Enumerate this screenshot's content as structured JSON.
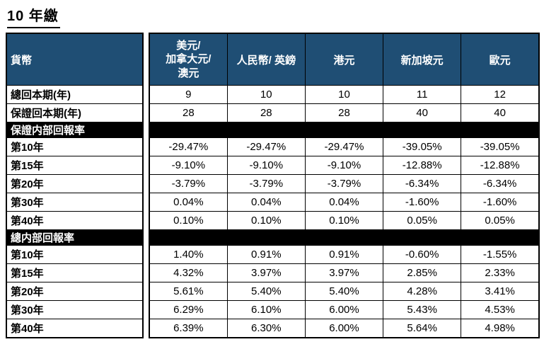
{
  "page_title": "10 年繳",
  "colors": {
    "header_bg": "#1F4E74",
    "header_text": "#FFFFFF",
    "section_bg": "#000000",
    "border": "#000000",
    "page_bg": "#FFFFFF"
  },
  "table": {
    "header": {
      "label_col": "貨幣",
      "columns": [
        "美元/\n加拿大元/\n澳元",
        "人民幣/ 英鎊",
        "港元",
        "新加坡元",
        "歐元"
      ]
    },
    "rows": [
      {
        "type": "data",
        "label": "總回本期(年)",
        "values": [
          "9",
          "10",
          "10",
          "11",
          "12"
        ]
      },
      {
        "type": "data",
        "label": "保證回本期(年)",
        "values": [
          "28",
          "28",
          "28",
          "40",
          "40"
        ]
      },
      {
        "type": "section",
        "label": "保證内部回報率"
      },
      {
        "type": "data",
        "label": "第10年",
        "values": [
          "-29.47%",
          "-29.47%",
          "-29.47%",
          "-39.05%",
          "-39.05%"
        ]
      },
      {
        "type": "data",
        "label": "第15年",
        "values": [
          "-9.10%",
          "-9.10%",
          "-9.10%",
          "-12.88%",
          "-12.88%"
        ]
      },
      {
        "type": "data",
        "label": "第20年",
        "values": [
          "-3.79%",
          "-3.79%",
          "-3.79%",
          "-6.34%",
          "-6.34%"
        ]
      },
      {
        "type": "data",
        "label": "第30年",
        "values": [
          "0.04%",
          "0.04%",
          "0.04%",
          "-1.60%",
          "-1.60%"
        ]
      },
      {
        "type": "data",
        "label": "第40年",
        "values": [
          "0.10%",
          "0.10%",
          "0.10%",
          "0.05%",
          "0.05%"
        ]
      },
      {
        "type": "section",
        "label": "總内部回報率"
      },
      {
        "type": "data",
        "label": "第10年",
        "values": [
          "1.40%",
          "0.91%",
          "0.91%",
          "-0.60%",
          "-1.55%"
        ]
      },
      {
        "type": "data",
        "label": "第15年",
        "values": [
          "4.32%",
          "3.97%",
          "3.97%",
          "2.85%",
          "2.33%"
        ]
      },
      {
        "type": "data",
        "label": "第20年",
        "values": [
          "5.61%",
          "5.40%",
          "5.40%",
          "4.28%",
          "3.41%"
        ]
      },
      {
        "type": "data",
        "label": "第30年",
        "values": [
          "6.29%",
          "6.10%",
          "6.00%",
          "5.43%",
          "4.53%"
        ]
      },
      {
        "type": "data",
        "label": "第40年",
        "values": [
          "6.39%",
          "6.30%",
          "6.00%",
          "5.64%",
          "4.98%"
        ]
      }
    ]
  }
}
